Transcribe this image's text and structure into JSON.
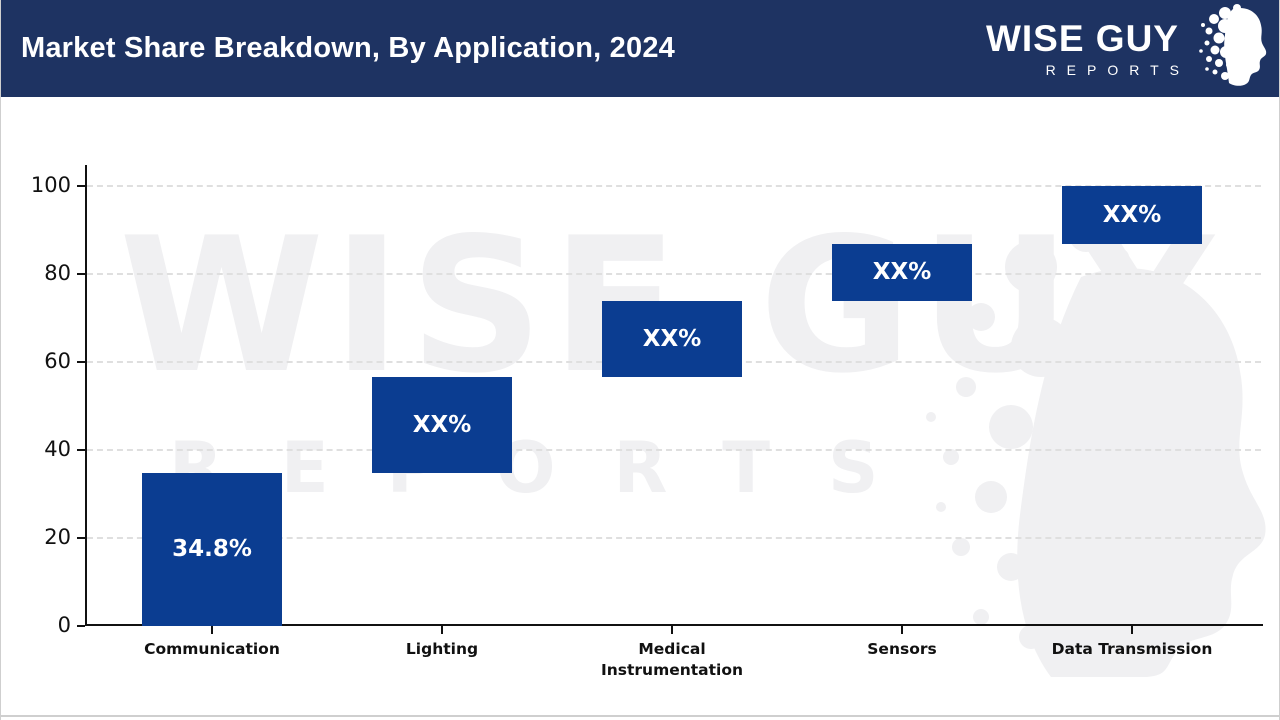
{
  "header": {
    "title": "Market Share Breakdown, By Application, 2024",
    "logo": {
      "line1": "WISE GUY",
      "line2": "REPORTS"
    }
  },
  "watermark": {
    "line1": "WISE GUY",
    "line2": "REPORTS"
  },
  "colors": {
    "header_navy": "#1e3362",
    "bar_blue": "#0b3d91",
    "axis": "#111111",
    "gridline": "#dfdfdf",
    "watermark_gray": "#f0f0f2",
    "frame_gray": "#cfcfcf",
    "label_white": "#ffffff"
  },
  "chart_data": {
    "type": "bar",
    "subtype": "waterfall",
    "title": "Market Share Breakdown, By Application, 2024",
    "xlabel": "",
    "ylabel": "",
    "ylim": [
      0,
      105
    ],
    "yticks": [
      0,
      20,
      40,
      60,
      80,
      100
    ],
    "grid": "dashed-horizontal",
    "legend": "none",
    "categories": [
      "Communication",
      "Lighting",
      "Medical Instrumentation",
      "Sensors",
      "Data Transmission"
    ],
    "categories_display": [
      "Communication",
      "Lighting",
      "Medical Instrumentation",
      "Sensors",
      "Data Transmission"
    ],
    "segments": [
      {
        "category": "Communication",
        "start": 0,
        "end": 34.8,
        "value": 34.8,
        "label": "34.8%"
      },
      {
        "category": "Lighting",
        "start": 34.8,
        "end": 56.6,
        "value": 21.8,
        "label": "XX%"
      },
      {
        "category": "Medical Instrumentation",
        "start": 56.6,
        "end": 73.9,
        "value": 17.3,
        "label": "XX%"
      },
      {
        "category": "Sensors",
        "start": 73.9,
        "end": 86.8,
        "value": 12.9,
        "label": "XX%"
      },
      {
        "category": "Data Transmission",
        "start": 86.8,
        "end": 100,
        "value": 13.2,
        "label": "XX%"
      }
    ]
  }
}
